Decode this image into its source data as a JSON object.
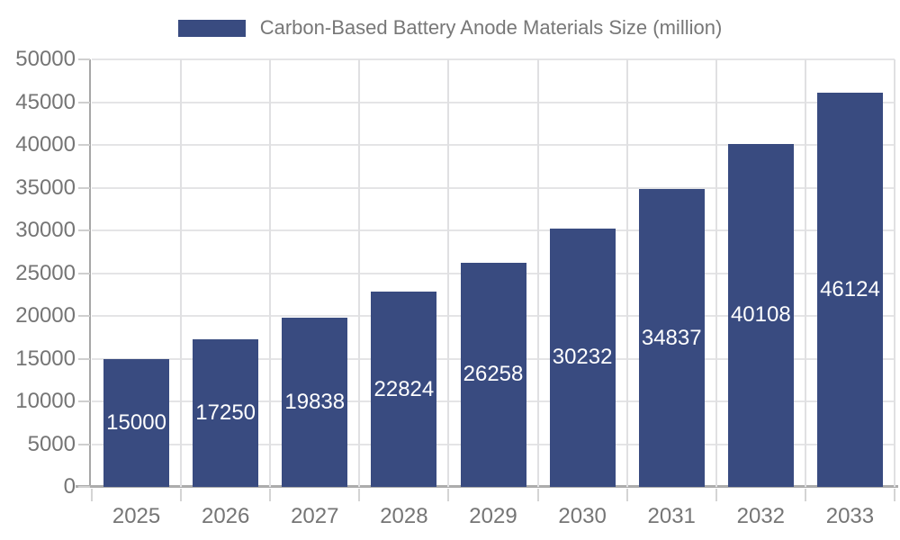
{
  "legend": {
    "label": "Carbon-Based Battery Anode Materials Size (million)"
  },
  "chart_data": {
    "type": "bar",
    "title": "Carbon-Based Battery Anode Materials Size (million)",
    "categories": [
      "2025",
      "2026",
      "2027",
      "2028",
      "2029",
      "2030",
      "2031",
      "2032",
      "2033"
    ],
    "values": [
      15000,
      17250,
      19838,
      22824,
      26258,
      30232,
      34837,
      40108,
      46124
    ],
    "xlabel": "",
    "ylabel": "",
    "ylim": [
      0,
      50000
    ],
    "yticks": [
      0,
      5000,
      10000,
      15000,
      20000,
      25000,
      30000,
      35000,
      40000,
      45000,
      50000
    ],
    "grid": true,
    "legend_position": "top-center",
    "bar_color": "#394b80",
    "value_label_color": "#ffffff"
  },
  "colors": {
    "background": "#ffffff",
    "bar": "#394b80",
    "grid_line": "#e4e4e6",
    "y_axis_line": "#a6a6a6",
    "x_axis_line": "#acacac",
    "tick_mark": "#d4d4d4",
    "axis_text": "#757575",
    "legend_text": "#777777"
  }
}
